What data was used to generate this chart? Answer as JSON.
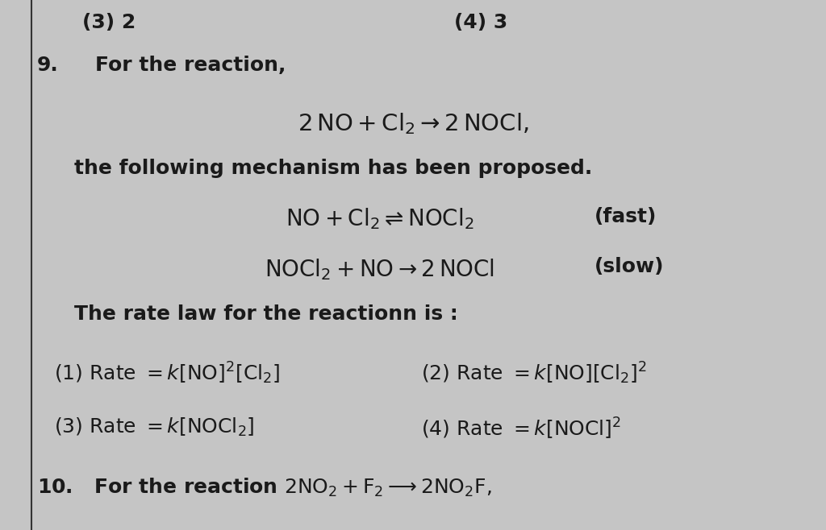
{
  "bg_color": "#c5c5c5",
  "text_color": "#1a1a1a",
  "figsize": [
    10.24,
    6.58
  ],
  "dpi": 100,
  "top_left_label": "(3) 2",
  "top_right_label": "(4) 3",
  "q9_label": "9.",
  "q9_text": "For the reaction,",
  "main_eq": "2\\,\\mathrm{NO} + \\mathrm{Cl}_2 \\rightarrow 2\\,\\mathrm{NOCl,}",
  "mechanism_intro": "the following mechanism has been proposed.",
  "mech1_eq": "\\mathrm{NO} + \\mathrm{Cl}_2 \\rightleftharpoons \\mathrm{NOCl}_2",
  "mech1_label": "(fast)",
  "mech2_eq": "\\mathrm{NOCl}_2 + \\mathrm{NO} \\rightarrow 2\\,\\mathrm{NOCl}",
  "mech2_label": "(slow)",
  "rate_law_text": "The rate law for the reactionn is :",
  "opt1": "(1) Rate = $k$[NO]$^2$[Cl$_2$]",
  "opt2": "(2) Rate = $k$[NO][Cl$_2$]$^2$",
  "opt3": "(3) Rate = $k$[NOCl$_2$]",
  "opt4": "(4) Rate = $k$[NOCl]$^2$",
  "q10_text": "10.   For the reaction 2NO$_2$ + F$_2$ $\\longrightarrow$ 2NO$_2$F,"
}
